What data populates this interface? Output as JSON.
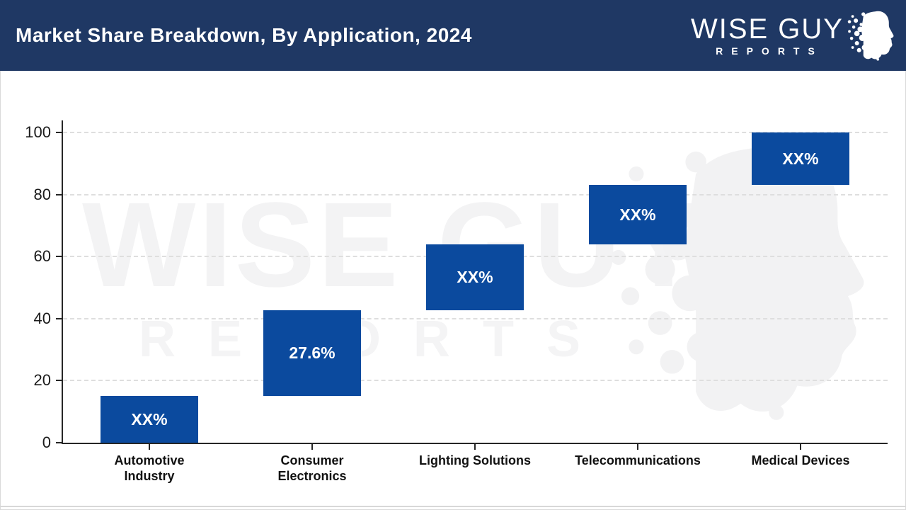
{
  "header": {
    "title": "Market Share Breakdown, By Application, 2024",
    "logo": {
      "primary": "WISE GUY",
      "secondary": "REPORTS"
    },
    "bg_color": "#1f3864"
  },
  "watermark": {
    "primary": "WISE GUY",
    "secondary": "REPORTS"
  },
  "chart_data": {
    "type": "bar",
    "subtype": "waterfall",
    "title": "Market Share Breakdown, By Application, 2024",
    "categories": [
      "Automotive Industry",
      "Consumer Electronics",
      "Lighting Solutions",
      "Telecommunications",
      "Medical Devices"
    ],
    "segments": [
      {
        "category": "Automotive Industry",
        "label_lines": [
          "Automotive",
          "Industry"
        ],
        "from": 0,
        "to": 15,
        "value_label": "XX%"
      },
      {
        "category": "Consumer Electronics",
        "label_lines": [
          "Consumer",
          "Electronics"
        ],
        "from": 15,
        "to": 42.6,
        "value_label": "27.6%",
        "value": 27.6
      },
      {
        "category": "Lighting Solutions",
        "label_lines": [
          "Lighting Solutions"
        ],
        "from": 42.6,
        "to": 64,
        "value_label": "XX%"
      },
      {
        "category": "Telecommunications",
        "label_lines": [
          "Telecommunications"
        ],
        "from": 64,
        "to": 83,
        "value_label": "XX%"
      },
      {
        "category": "Medical Devices",
        "label_lines": [
          "Medical Devices"
        ],
        "from": 83,
        "to": 100,
        "value_label": "XX%"
      }
    ],
    "y_ticks": [
      0,
      20,
      40,
      60,
      80,
      100
    ],
    "ylim": [
      0,
      100
    ],
    "grid": "horizontal dashed",
    "legend": "none",
    "bar_color": "#0b4a9e",
    "value_label_color": "#ffffff",
    "axis_color": "#262626",
    "grid_color": "#dedede"
  }
}
